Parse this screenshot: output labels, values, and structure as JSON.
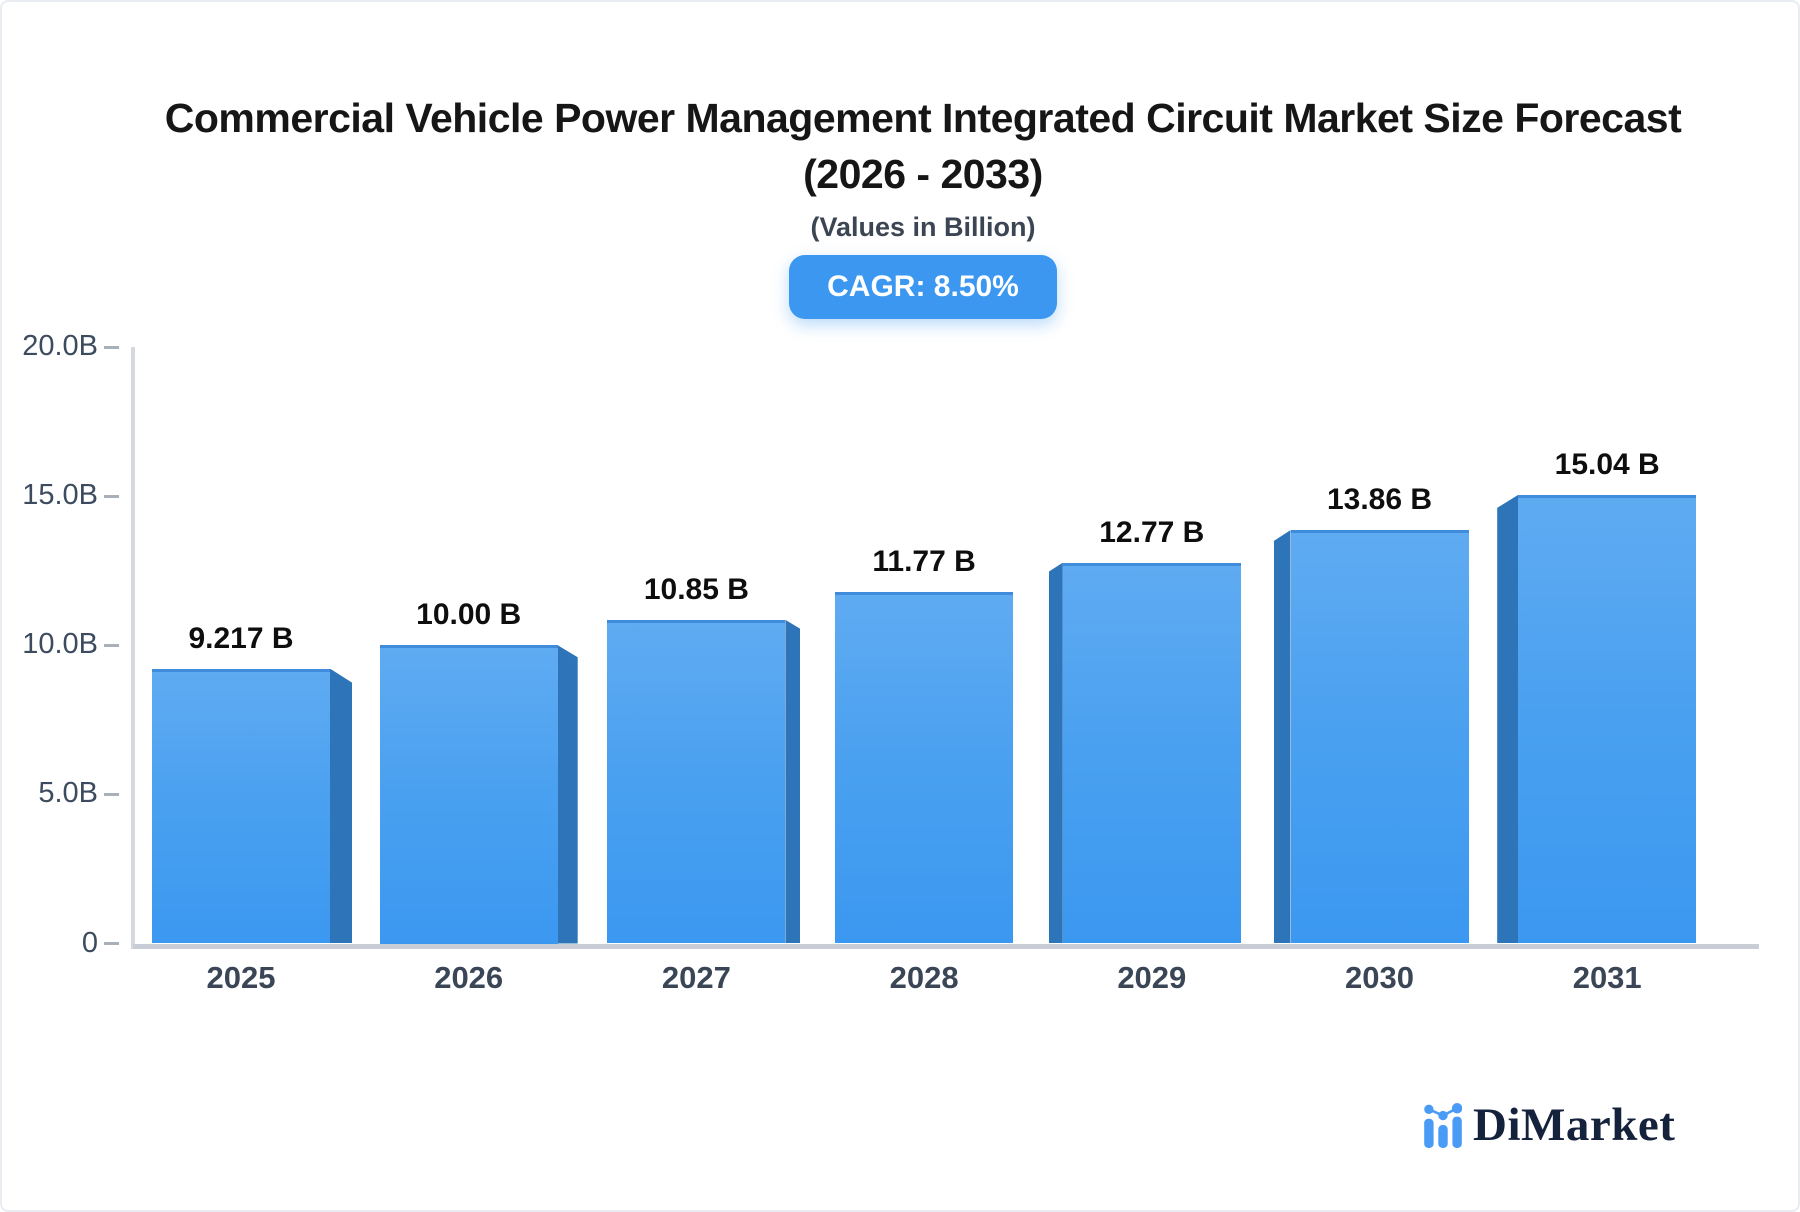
{
  "header": {
    "title_line1": "Commercial Vehicle Power Management Integrated Circuit Market Size Forecast",
    "title_line2": "(2026 - 2033)",
    "subtitle": "(Values in Billion)",
    "cagr_label": "CAGR: 8.50%"
  },
  "chart_data": {
    "type": "bar",
    "title": "Commercial Vehicle Power Management Integrated Circuit Market Size Forecast (2026 - 2033)",
    "subtitle": "(Values in Billion)",
    "cagr": "8.50%",
    "categories": [
      "2025",
      "2026",
      "2027",
      "2028",
      "2029",
      "2030",
      "2031"
    ],
    "values": [
      9.217,
      10.0,
      10.85,
      11.77,
      12.77,
      13.86,
      15.04
    ],
    "bar_labels": [
      "9.217 B",
      "10.00 B",
      "10.85 B",
      "11.77 B",
      "12.77 B",
      "13.86 B",
      "15.04 B"
    ],
    "xlabel": "",
    "ylabel": "",
    "ylim": [
      0,
      20
    ],
    "y_ticks": [
      {
        "value": 20,
        "label": "20.0B"
      },
      {
        "value": 15,
        "label": "15.0B"
      },
      {
        "value": 10,
        "label": "10.0B"
      },
      {
        "value": 5,
        "label": "5.0B"
      },
      {
        "value": 0,
        "label": "0"
      }
    ],
    "grid": false,
    "legend": false,
    "bar_color": "#3b98f0",
    "bar_side_color": "#2d74b9"
  },
  "footer": {
    "logo_text": "DiMarket"
  },
  "colors": {
    "badge_bg": "#3b97ef",
    "axis_line": "#d5d8de",
    "baseline": "#c9ced6",
    "tick_label": "#3d4b5f",
    "x_label": "#3a4656",
    "value_label": "#0e0e0e",
    "logo_blue": "#4a9bf5",
    "logo_navy": "#15223c"
  }
}
